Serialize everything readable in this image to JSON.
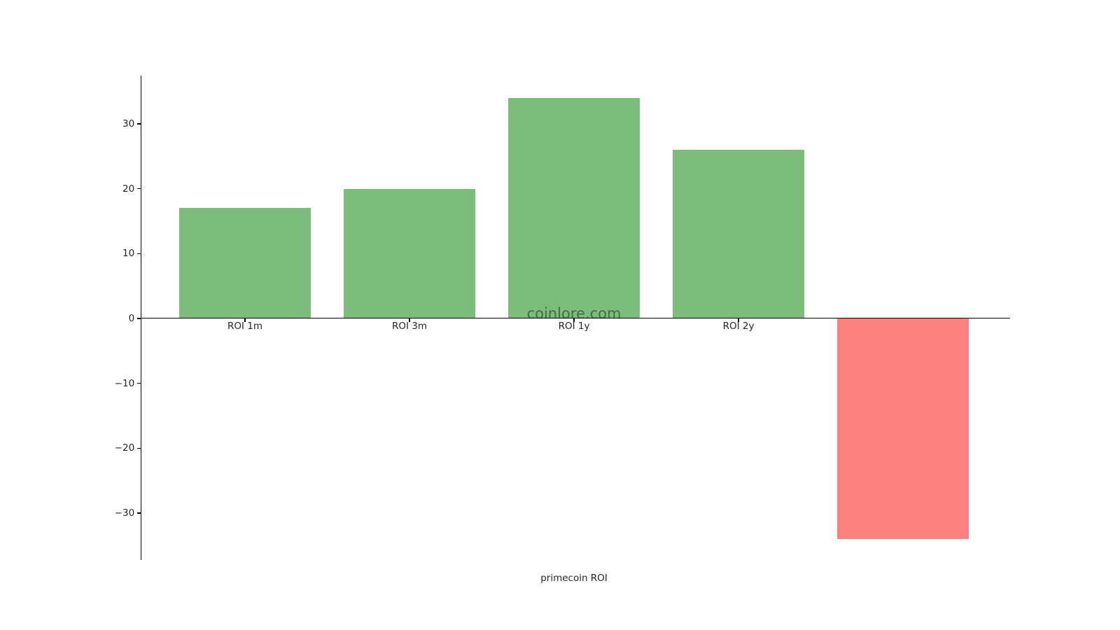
{
  "chart_data": {
    "type": "bar",
    "title": "",
    "xlabel": "primecoin ROI",
    "ylabel": "",
    "categories": [
      "ROI 1m",
      "ROI 3m",
      "ROI 1y",
      "ROI 2y",
      ""
    ],
    "values": [
      17,
      20,
      34,
      26,
      -34
    ],
    "yticks": [
      30,
      20,
      10,
      0,
      -10,
      -20,
      -30
    ],
    "ytick_labels": [
      "30",
      "20",
      "10",
      "0",
      "−10",
      "−20",
      "−30"
    ],
    "ylim": [
      -37.4,
      37.4
    ],
    "grid": false,
    "legend": false,
    "watermark": "coinlore.com",
    "colors": {
      "positive_bar": "#7cbd7c",
      "negative_bar": "#fd8080",
      "axis": "#000000",
      "tick_label": "#262626",
      "watermark": "#8f8f8f"
    }
  }
}
